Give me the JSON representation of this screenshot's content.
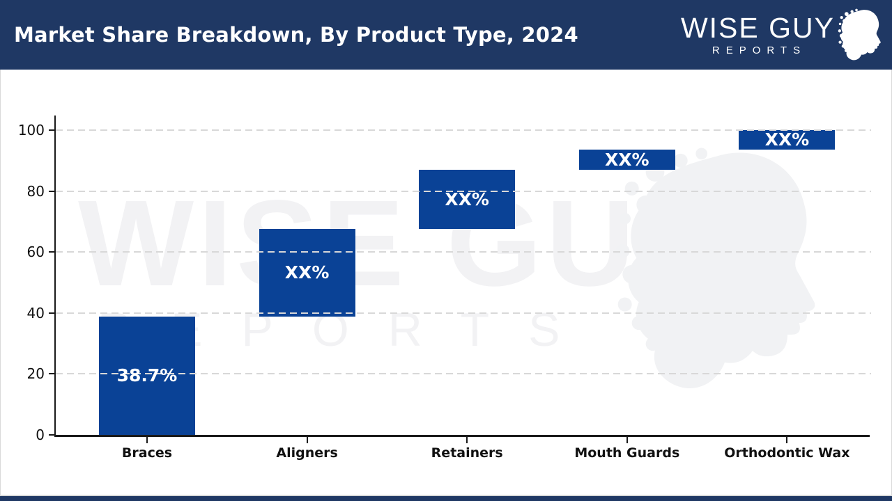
{
  "header": {
    "title": "Market Share Breakdown, By Product Type, 2024",
    "logo": {
      "line1": "WISE GUY",
      "line2": "REPORTS"
    },
    "bg_color": "#1f3864"
  },
  "watermark": {
    "line1": "WISE GUY",
    "line2": "REPORTS"
  },
  "chart_data": {
    "type": "bar",
    "subtype": "waterfall",
    "title": "Market Share Breakdown, By Product Type, 2024",
    "categories": [
      "Braces",
      "Aligners",
      "Retainers",
      "Mouth Guards",
      "Orthodontic Wax"
    ],
    "segments": [
      {
        "category": "Braces",
        "start": 0,
        "end": 38.7,
        "label": "38.7%"
      },
      {
        "category": "Aligners",
        "start": 38.7,
        "end": 67.5,
        "label": "XX%"
      },
      {
        "category": "Retainers",
        "start": 67.5,
        "end": 87.0,
        "label": "XX%"
      },
      {
        "category": "Mouth Guards",
        "start": 87.0,
        "end": 93.5,
        "label": "XX%"
      },
      {
        "category": "Orthodontic Wax",
        "start": 93.5,
        "end": 100.0,
        "label": "XX%"
      }
    ],
    "y_ticks": [
      0,
      20,
      40,
      60,
      80,
      100
    ],
    "ylim": [
      0,
      105
    ],
    "xlabel": "",
    "ylabel": "",
    "grid": true,
    "grid_style": "dashed",
    "legend": false,
    "bar_color": "#0a4296",
    "label_color": "#ffffff",
    "axis_color": "#1a1a1a",
    "grid_color": "#d8d8d8"
  }
}
